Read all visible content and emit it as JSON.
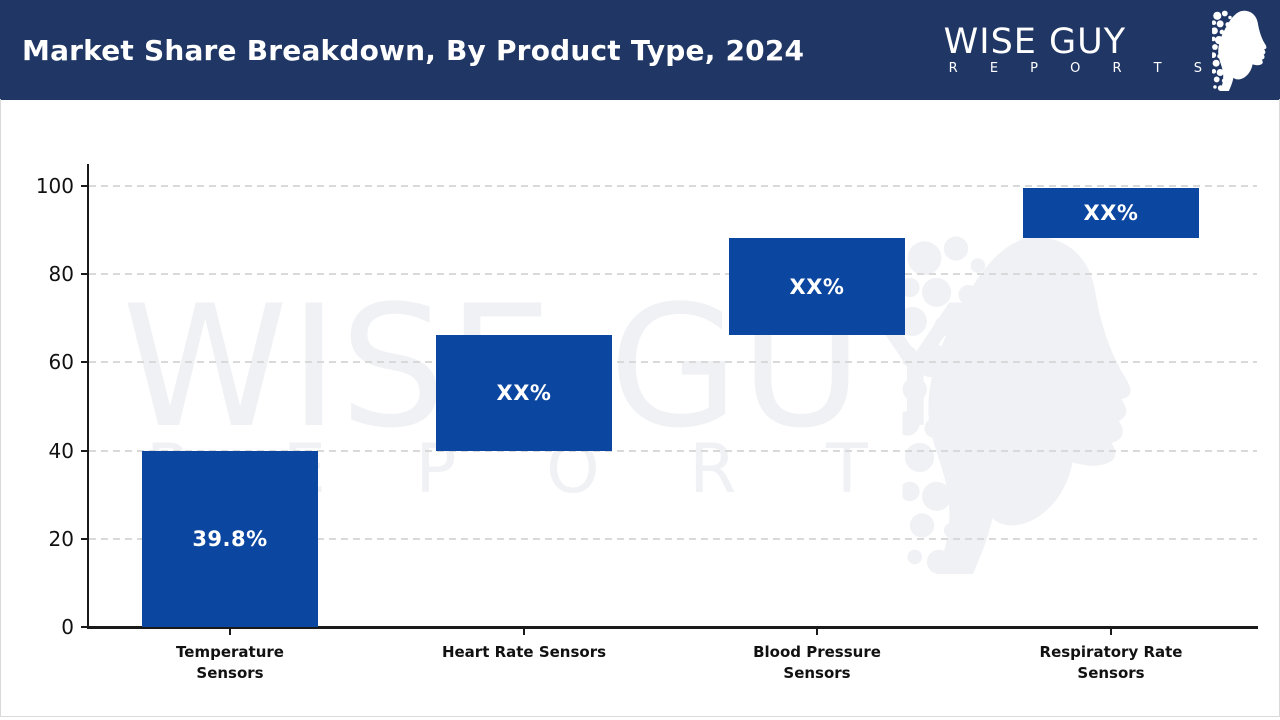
{
  "header": {
    "bg_color": "#203766",
    "title": "Market Share Breakdown, By Product Type, 2024",
    "logo": {
      "line1": "WISE GUY",
      "line2": "R E P O R T S"
    }
  },
  "watermark": {
    "line1": "WISE GUY",
    "line2": "R E P O R T S"
  },
  "chart_data": {
    "type": "bar",
    "subtype": "waterfall",
    "title": "Market Share Breakdown, By Product Type, 2024",
    "categories": [
      [
        "Temperature",
        "Sensors"
      ],
      [
        "Heart Rate Sensors"
      ],
      [
        "Blood Pressure",
        "Sensors"
      ],
      [
        "Respiratory Rate",
        "Sensors"
      ]
    ],
    "segments": [
      {
        "name": "Temperature Sensors",
        "label": "39.8%",
        "start": 0,
        "end": 39.8
      },
      {
        "name": "Heart Rate Sensors",
        "label": "XX%",
        "start": 39.8,
        "end": 66.2
      },
      {
        "name": "Blood Pressure Sensors",
        "label": "XX%",
        "start": 66.2,
        "end": 88.2
      },
      {
        "name": "Respiratory Rate Sensors",
        "label": "XX%",
        "start": 88.2,
        "end": 99.6
      }
    ],
    "yticks": [
      0,
      20,
      40,
      60,
      80,
      100
    ],
    "ylim": [
      0,
      105
    ],
    "xlabel": "",
    "ylabel": "",
    "grid": {
      "axis": "y",
      "style": "dashed",
      "color": "#d9d9d9"
    },
    "bar_color": "#0b46a0",
    "bar_label_color": "#ffffff",
    "legend": null
  }
}
